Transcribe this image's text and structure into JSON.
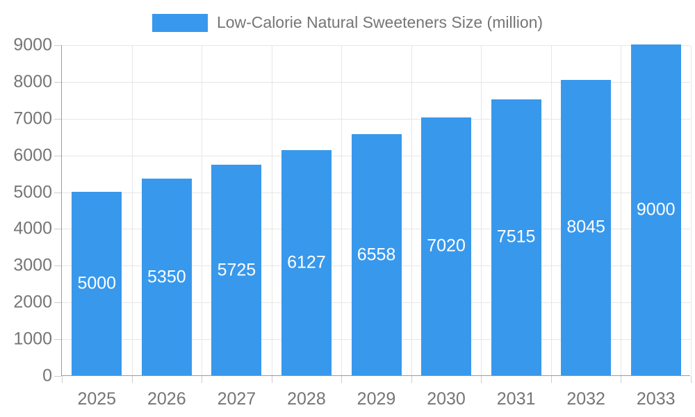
{
  "chart_data": {
    "type": "bar",
    "legend": "Low-Calorie Natural Sweeteners Size (million)",
    "categories": [
      "2025",
      "2026",
      "2027",
      "2028",
      "2029",
      "2030",
      "2031",
      "2032",
      "2033"
    ],
    "values": [
      5000,
      5350,
      5725,
      6127,
      6558,
      7020,
      7515,
      8045,
      9000
    ],
    "xlabel": "",
    "ylabel": "",
    "ylim": [
      0,
      9000
    ],
    "ytick_step": 1000,
    "grid": true,
    "legend_position": "top-center",
    "colors": {
      "bar": "#3898ec",
      "value_label": "#ffffff",
      "axis_text": "#757575",
      "grid_line": "#e6e6e6",
      "tick_line": "#cccccc",
      "axis_line": "#999999"
    }
  }
}
